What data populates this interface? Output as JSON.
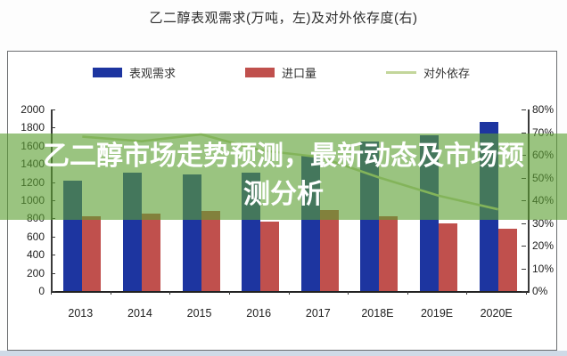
{
  "title": "乙二醇表观需求(万吨，左)及对外依存度(右)",
  "overlay": {
    "text": "乙二醇市场走势预测，最新动态及市场预\n测分析",
    "bg_color": "#5ca032",
    "bg_opacity": 0.62,
    "text_color": "#ffffff"
  },
  "legend": [
    {
      "label": "表观需求",
      "swatch": "bar",
      "color": "#1d35a0"
    },
    {
      "label": "进口量",
      "swatch": "bar",
      "color": "#c0504d"
    },
    {
      "label": "对外依存",
      "swatch": "line",
      "color": "#c3d69b"
    }
  ],
  "chart_data": {
    "type": "bar",
    "title": "乙二醇表观需求(万吨，左)及对外依存度(右)",
    "categories": [
      "2013",
      "2014",
      "2015",
      "2016",
      "2017",
      "2018E",
      "2019E",
      "2020E"
    ],
    "series": [
      {
        "name": "表观需求",
        "type": "bar",
        "axis": "left",
        "color": "#1d35a0",
        "values": [
          1220,
          1300,
          1280,
          1300,
          1490,
          1650,
          1720,
          1860
        ]
      },
      {
        "name": "进口量",
        "type": "bar",
        "axis": "left",
        "color": "#c0504d",
        "values": [
          820,
          850,
          880,
          770,
          890,
          820,
          750,
          690
        ]
      },
      {
        "name": "对外依存",
        "type": "line",
        "axis": "right",
        "color": "#c3d69b",
        "values": [
          68,
          66,
          69,
          62,
          59,
          50,
          42,
          36
        ]
      }
    ],
    "left_axis": {
      "min": 0,
      "max": 2000,
      "step": 200,
      "ticks": [
        "2000",
        "1800",
        "1600",
        "1400",
        "1200",
        "1000",
        "800",
        "600",
        "400",
        "200",
        "0"
      ]
    },
    "right_axis": {
      "min": 0,
      "max": 80,
      "step": 10,
      "suffix": "%",
      "ticks": [
        "80%",
        "70%",
        "60%",
        "50%",
        "40%",
        "30%",
        "20%",
        "10%",
        "0%"
      ]
    },
    "grid": false,
    "legend_position": "top"
  },
  "axis_color": "#3a3a3a"
}
